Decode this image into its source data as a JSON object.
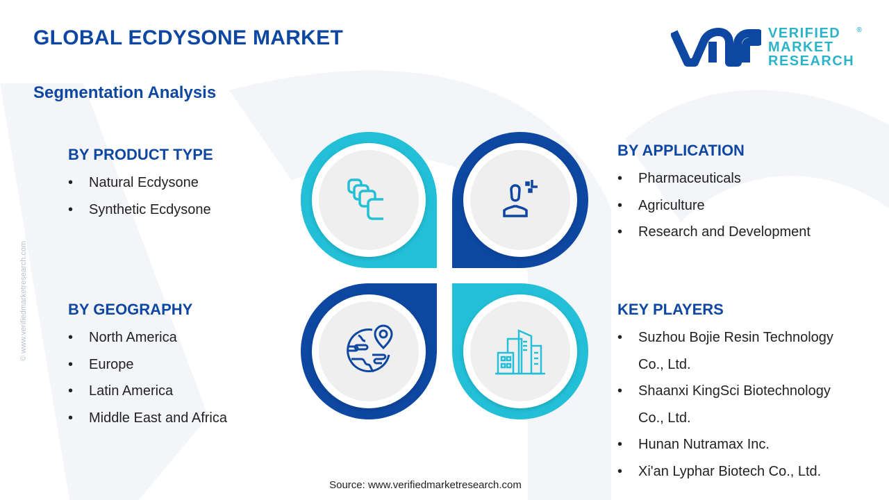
{
  "header": {
    "title": "GLOBAL ECDYSONE MARKET",
    "subtitle": "Segmentation Analysis"
  },
  "logo": {
    "line1": "VERIFIED",
    "line2": "MARKET",
    "line3": "RESEARCH",
    "mark": "®"
  },
  "side_text": "© www.verifiedmarketresearch.com",
  "colors": {
    "dark_blue": "#0d47a1",
    "cyan": "#22bfd6"
  },
  "sections": {
    "product": {
      "title": "BY PRODUCT TYPE",
      "items": [
        "Natural Ecdysone",
        "Synthetic Ecdysone"
      ],
      "icon": "stacked-squares-icon"
    },
    "application": {
      "title": "BY APPLICATION",
      "items": [
        "Pharmaceuticals",
        "Agriculture",
        "Research and Development"
      ],
      "icon": "person-icon"
    },
    "geography": {
      "title": "BY GEOGRAPHY",
      "items": [
        "North America",
        "Europe",
        "Latin America",
        "Middle East and Africa"
      ],
      "icon": "globe-pin-icon"
    },
    "players": {
      "title": "KEY PLAYERS",
      "items": [
        "Suzhou Bojie Resin Technology",
        "Co., Ltd.",
        "Shaanxi KingSci Biotechnology",
        "Co., Ltd.",
        "Hunan Nutramax Inc.",
        "Xi'an Lyphar Biotech Co., Ltd."
      ],
      "icon": "buildings-icon"
    }
  },
  "bullet": "•",
  "source": "Source: www.verifiedmarketresearch.com"
}
